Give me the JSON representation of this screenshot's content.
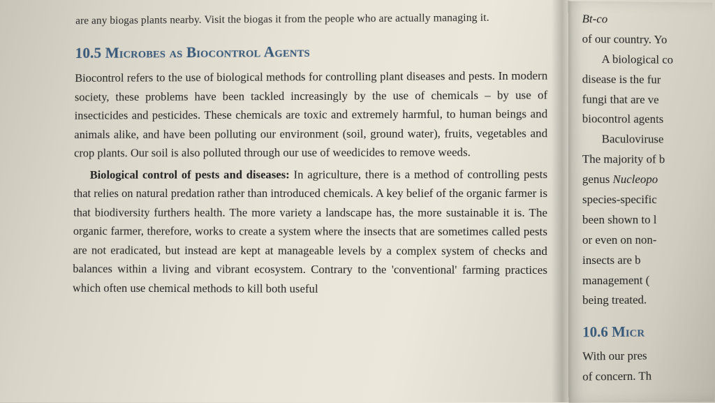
{
  "left": {
    "topFrag": "are any biogas plants nearby. Visit the biogas\nit from the people who are actually managing it.",
    "sectionNumber": "10.5",
    "sectionTitle": "Microbes as Biocontrol Agents",
    "para1": "Biocontrol refers to the use of biological methods for controlling plant diseases and pests. In modern society, these problems have been tackled increasingly by the use of chemicals – by use of insecticides and pesticides. These chemicals are toxic and extremely harmful, to human beings and animals alike, and have been polluting our environment (soil, ground water), fruits, vegetables and crop plants. Our soil is also polluted through our use of weedicides to remove weeds.",
    "para2lead": "Biological control of pests and diseases:",
    "para2body": " In agriculture, there is a method of controlling pests that relies on natural predation rather than introduced chemicals. A key belief of the organic farmer is that biodiversity furthers health. The more variety a landscape has, the more sustainable it is. The organic farmer, therefore, works to create a system where the insects that are sometimes called pests are not eradicated, but instead are kept at manageable levels by a complex system of checks and balances within a living and vibrant ecosystem. Contrary to the 'conventional' farming practices which often use chemical methods to kill both useful"
  },
  "right": {
    "l0a": "Bt-co",
    "l0": "of our country. Yo",
    "l1": "A biological co",
    "l2": "disease is the fur",
    "l3": "fungi that are ve",
    "l4": "biocontrol agents",
    "l5": "Baculoviruse",
    "l6": "The majority of b",
    "l7a": "genus ",
    "l7b": "Nucleopo",
    "l8": "species-specific",
    "l9": "been shown to l",
    "l10": "or even on non-",
    "l11": "insects are b",
    "l12": "management (",
    "l13": "being treated.",
    "heading": "10.6 Micr",
    "l14": "With our pres",
    "l15": "of concern. Th"
  },
  "colors": {
    "heading": "#3a5a7a",
    "text": "#222222"
  }
}
